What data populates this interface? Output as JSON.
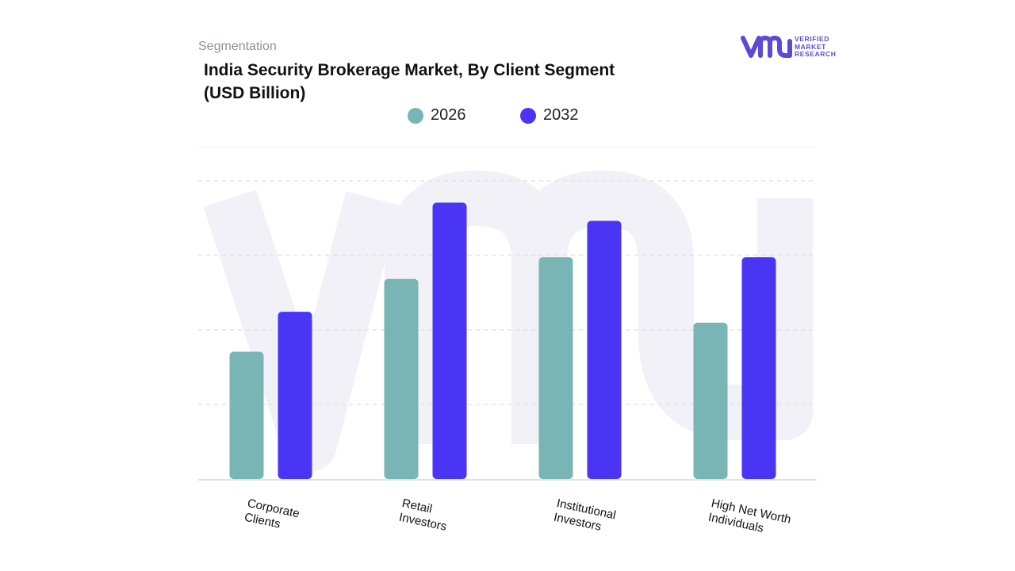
{
  "header": {
    "segment_label": "Segmentation",
    "title": "India Security Brokerage Market, By Client Segment (USD Billion)"
  },
  "logo": {
    "line1": "VERIFIED",
    "line2": "MARKET",
    "line3": "RESEARCH",
    "icon": "vmr-logo-icon"
  },
  "chart_data": {
    "type": "bar",
    "title": "India Security Brokerage Market, By Client Segment (USD Billion)",
    "xlabel": "",
    "ylabel": "",
    "categories": [
      "Corporate\nClients",
      "Retail\nInvestors",
      "Institutional\nInvestors",
      "High Net Worth\nIndividuals"
    ],
    "series": [
      {
        "name": "2026",
        "values": [
          1.75,
          2.75,
          3.05,
          2.15
        ],
        "color": "#7ab5b6"
      },
      {
        "name": "2032",
        "values": [
          2.3,
          3.8,
          3.55,
          3.05
        ],
        "color": "#4b35f5"
      }
    ],
    "ylim": [
      0,
      4.1
    ],
    "grid": true,
    "legend_position": "top-center",
    "axis_tick_labels_shown": false
  }
}
